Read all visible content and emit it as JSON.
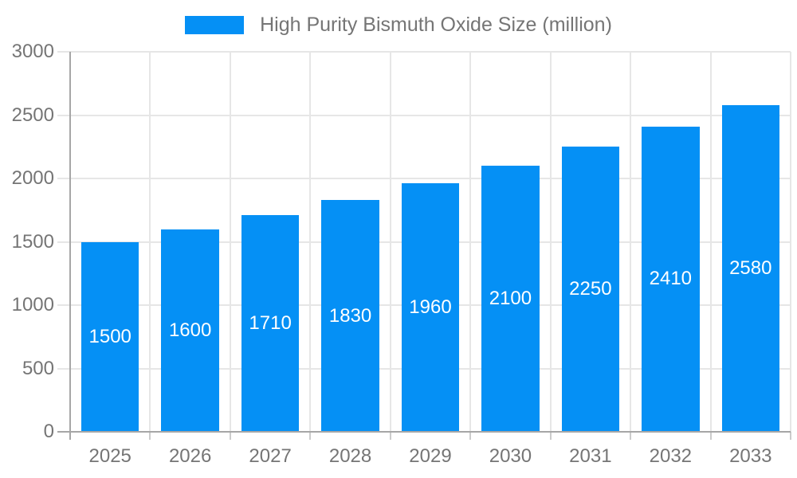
{
  "chart_data": {
    "type": "bar",
    "title": "High Purity Bismuth Oxide Size (million)",
    "categories": [
      "2025",
      "2026",
      "2027",
      "2028",
      "2029",
      "2030",
      "2031",
      "2032",
      "2033"
    ],
    "values": [
      1500,
      1600,
      1710,
      1830,
      1960,
      2100,
      2250,
      2410,
      2580
    ],
    "value_labels": [
      "1500",
      "1600",
      "1710",
      "1830",
      "1960",
      "2100",
      "2250",
      "2410",
      "2580"
    ],
    "xlabel": "",
    "ylabel": "",
    "ylim": [
      0,
      3000
    ],
    "yticks": [
      0,
      500,
      1000,
      1500,
      2000,
      2500,
      3000
    ],
    "grid": true,
    "legend_position": "top",
    "colors": {
      "bar": "#0590F5",
      "grid": "#E6E6E6",
      "axis": "#A6A6A6",
      "tick": "#CCCCCC",
      "text": "#757575",
      "value_label": "#FFFFFF",
      "background": "#FFFFFF"
    }
  }
}
